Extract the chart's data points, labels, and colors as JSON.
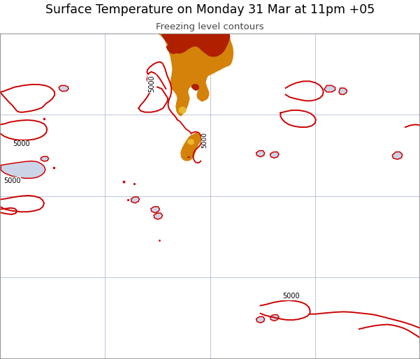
{
  "title": "Surface Temperature on Monday 31 Mar at 11pm +05",
  "subtitle": "Freezing level contours",
  "title_fontsize": 12.5,
  "subtitle_fontsize": 9.5,
  "map_bg": "#ccd5e8",
  "land_orange": "#d4820a",
  "land_orange_light": "#e09020",
  "land_red": "#b02000",
  "land_yellow": "#e8b830",
  "contour_color": "#cc0000",
  "grid_color": "#b0bcd4",
  "header_bg": "#f5f5f5",
  "fig_bg": "#ffffff",
  "text_color": "#000000"
}
